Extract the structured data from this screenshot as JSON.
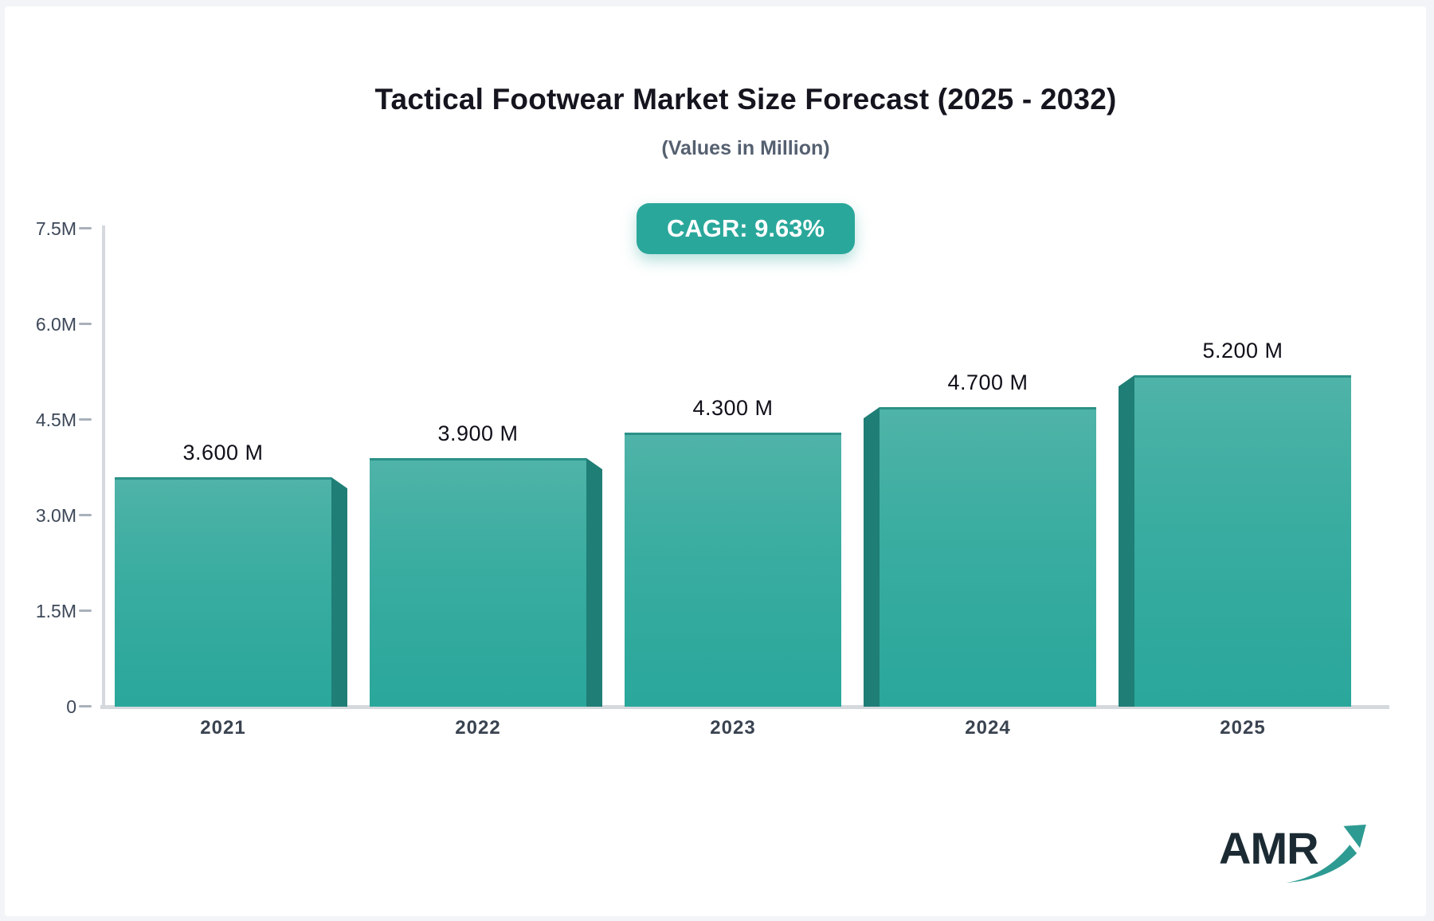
{
  "page": {
    "background_color": "#f2f4f7",
    "card_color": "#ffffff"
  },
  "header": {
    "title": "Tactical Footwear Market Size Forecast (2025 - 2032)",
    "subtitle": "(Values in Million)",
    "cagr_badge": "CAGR: 9.63%"
  },
  "chart_data": {
    "type": "bar",
    "title": "Tactical Footwear Market Size Forecast (2025 - 2032)",
    "subtitle": "(Values in Million)",
    "unit": "Million",
    "cagr_percent": 9.63,
    "categories": [
      "2021",
      "2022",
      "2023",
      "2024",
      "2025"
    ],
    "values": [
      3.6,
      3.9,
      4.3,
      4.7,
      5.2
    ],
    "value_labels": [
      "3.600 M",
      "3.900 M",
      "4.300 M",
      "4.700 M",
      "5.200 M"
    ],
    "xlabel": "",
    "ylabel": "",
    "ylim": [
      0,
      7.5
    ],
    "ytick_values": [
      0,
      1.5,
      3.0,
      4.5,
      6.0,
      7.5
    ],
    "ytick_labels": [
      "0",
      "1.5M",
      "3.0M",
      "4.5M",
      "6.0M",
      "7.5M"
    ],
    "grid": false,
    "legend": false,
    "colors": {
      "bar_gradient_top": "#4fb3a8",
      "bar_gradient_bottom": "#2aa79b",
      "bar_side_shadow": "#1f7e76",
      "badge_background": "#2aa79b",
      "axis_line": "#d5d9de",
      "accent": "#2aa79b"
    }
  },
  "logo": {
    "text": "AMR",
    "arrow_color": "#2e9b92"
  }
}
